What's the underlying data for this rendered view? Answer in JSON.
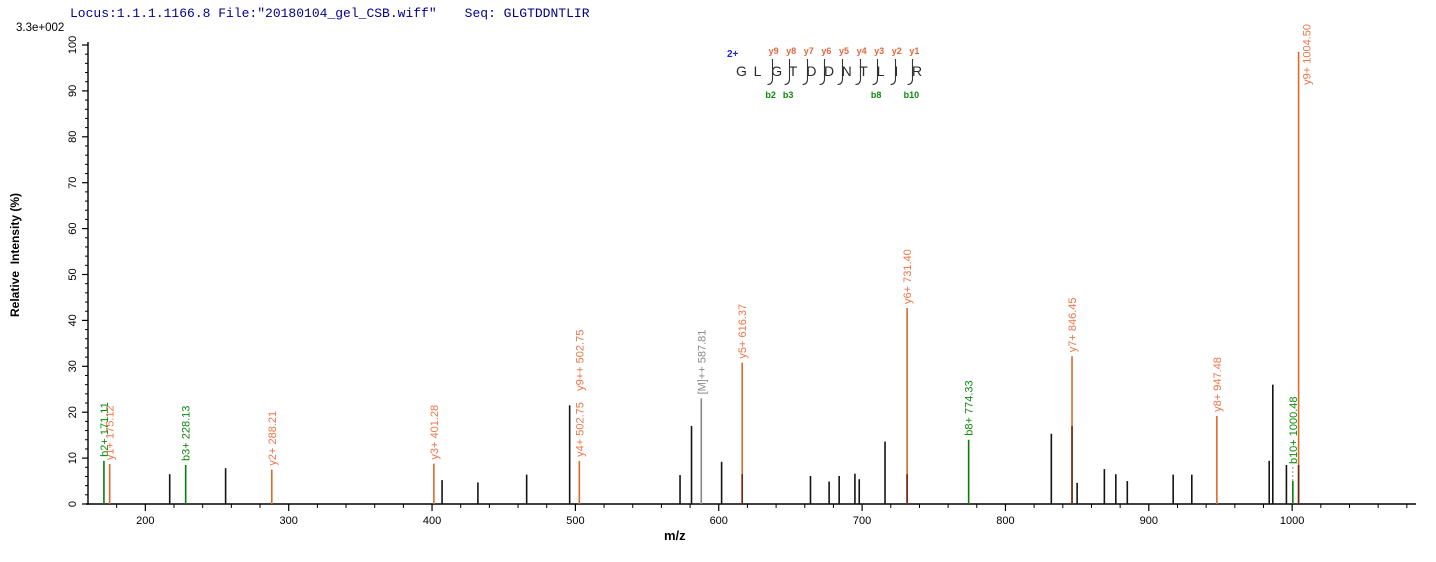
{
  "header": {
    "locus_file": "Locus:1.1.1.1166.8 File:\"20180104_gel_CSB.wiff\"",
    "seq": "Seq: GLGTDDNTLIR",
    "max_intensity": "3.3e+002",
    "text_color": "#00008b"
  },
  "axes": {
    "x_label": "m/z",
    "y_label": "Relative  Intensity (%)",
    "x_ticks": [
      200,
      300,
      400,
      500,
      600,
      700,
      800,
      900,
      1000
    ],
    "x_minor_step": 20,
    "x_range": [
      160,
      1085
    ],
    "y_ticks": [
      0,
      10,
      20,
      30,
      40,
      50,
      60,
      70,
      80,
      90,
      100
    ],
    "y_minor_step": 2,
    "y_range": [
      0,
      100
    ]
  },
  "peptide": {
    "charge_label": "2+",
    "sequence": "GLGTDDNTLIR",
    "residues": [
      "G",
      "L",
      "G",
      "T",
      "D",
      "D",
      "N",
      "T",
      "L",
      "I",
      "R"
    ],
    "separators": [
      {
        "after_residue": 2,
        "y_ion": "y9",
        "b_ion": "b2"
      },
      {
        "after_residue": 3,
        "y_ion": "y8",
        "b_ion": "b3"
      },
      {
        "after_residue": 4,
        "y_ion": "y7",
        "b_ion": null
      },
      {
        "after_residue": 5,
        "y_ion": "y6",
        "b_ion": null
      },
      {
        "after_residue": 6,
        "y_ion": "y5",
        "b_ion": null
      },
      {
        "after_residue": 7,
        "y_ion": "y4",
        "b_ion": null
      },
      {
        "after_residue": 8,
        "y_ion": "y3",
        "b_ion": "b8"
      },
      {
        "after_residue": 9,
        "y_ion": "y2",
        "b_ion": null
      },
      {
        "after_residue": 10,
        "y_ion": "y1",
        "b_ion": "b10"
      }
    ]
  },
  "colors": {
    "y_ion_line": "#d96b28",
    "y_ion_label": "#ed7547",
    "b_ion_line": "#0a7c0a",
    "b_ion_label": "#0b8a0b",
    "precursor": "#8a8a8a",
    "unassigned": "#141414",
    "overlap": "#6e2413",
    "axis": "#000000",
    "charge_blue": "#2626d8"
  },
  "chart_data": {
    "type": "bar",
    "title": "Locus:1.1.1.1166.8 File:\"20180104_gel_CSB.wiff\" Seq: GLGTDDNTLIR",
    "xlabel": "m/z",
    "ylabel": "Relative  Intensity (%)",
    "xlim": [
      160,
      1085
    ],
    "ylim": [
      0,
      100
    ],
    "base_peak_intensity_label": "3.3e+002",
    "grid": false,
    "peaks": [
      {
        "mz": 171.11,
        "intensity_pct": 9.4,
        "type": "b",
        "label": "b2+ 171.11"
      },
      {
        "mz": 175.12,
        "intensity_pct": 8.7,
        "type": "y",
        "label": "y1+ 175.12"
      },
      {
        "mz": 217,
        "intensity_pct": 6.5,
        "type": "unassigned",
        "label": null
      },
      {
        "mz": 228.13,
        "intensity_pct": 8.5,
        "type": "b",
        "label": "b3+ 228.13"
      },
      {
        "mz": 256,
        "intensity_pct": 7.8,
        "type": "unassigned",
        "label": null
      },
      {
        "mz": 288.21,
        "intensity_pct": 7.5,
        "type": "y",
        "label": "y2+ 288.21"
      },
      {
        "mz": 401.28,
        "intensity_pct": 8.8,
        "type": "y",
        "label": "y3+ 401.28"
      },
      {
        "mz": 407,
        "intensity_pct": 5.2,
        "type": "unassigned",
        "label": null
      },
      {
        "mz": 432,
        "intensity_pct": 4.7,
        "type": "unassigned",
        "label": null
      },
      {
        "mz": 466,
        "intensity_pct": 6.4,
        "type": "unassigned",
        "label": null
      },
      {
        "mz": 496,
        "intensity_pct": 21.5,
        "type": "unassigned",
        "label": null
      },
      {
        "mz": 502.75,
        "intensity_pct": 9.4,
        "type": "y",
        "label": "y4+ 502.75",
        "label2": "y9++ 502.75"
      },
      {
        "mz": 573,
        "intensity_pct": 6.3,
        "type": "unassigned",
        "label": null
      },
      {
        "mz": 581,
        "intensity_pct": 17.0,
        "type": "unassigned",
        "label": null
      },
      {
        "mz": 587.81,
        "intensity_pct": 23.0,
        "type": "precursor",
        "label": "[M]++ 587.81"
      },
      {
        "mz": 602,
        "intensity_pct": 9.2,
        "type": "unassigned",
        "label": null
      },
      {
        "mz": 616.37,
        "intensity_pct": 30.8,
        "type": "y",
        "label": "y5+ 616.37",
        "overlap_pct": 6.5
      },
      {
        "mz": 664,
        "intensity_pct": 6.1,
        "type": "unassigned",
        "label": null
      },
      {
        "mz": 677,
        "intensity_pct": 4.9,
        "type": "unassigned",
        "label": null
      },
      {
        "mz": 684,
        "intensity_pct": 6.1,
        "type": "unassigned",
        "label": null
      },
      {
        "mz": 695,
        "intensity_pct": 6.6,
        "type": "unassigned",
        "label": null
      },
      {
        "mz": 698,
        "intensity_pct": 5.4,
        "type": "unassigned",
        "label": null
      },
      {
        "mz": 716,
        "intensity_pct": 13.6,
        "type": "unassigned",
        "label": null
      },
      {
        "mz": 731.4,
        "intensity_pct": 42.7,
        "type": "y",
        "label": "y6+ 731.40",
        "overlap_pct": 6.5
      },
      {
        "mz": 774.33,
        "intensity_pct": 14.0,
        "type": "b",
        "label": "b8+ 774.33"
      },
      {
        "mz": 832,
        "intensity_pct": 15.3,
        "type": "unassigned",
        "label": null
      },
      {
        "mz": 846.45,
        "intensity_pct": 32.2,
        "type": "y",
        "label": "y7+ 846.45",
        "overlap_pct": 17.0
      },
      {
        "mz": 850,
        "intensity_pct": 4.6,
        "type": "unassigned",
        "label": null
      },
      {
        "mz": 869,
        "intensity_pct": 7.6,
        "type": "unassigned",
        "label": null
      },
      {
        "mz": 877,
        "intensity_pct": 6.5,
        "type": "unassigned",
        "label": null
      },
      {
        "mz": 885,
        "intensity_pct": 5.0,
        "type": "unassigned",
        "label": null
      },
      {
        "mz": 917,
        "intensity_pct": 6.4,
        "type": "unassigned",
        "label": null
      },
      {
        "mz": 930,
        "intensity_pct": 6.4,
        "type": "unassigned",
        "label": null
      },
      {
        "mz": 947.48,
        "intensity_pct": 19.2,
        "type": "y",
        "label": "y8+ 947.48"
      },
      {
        "mz": 984,
        "intensity_pct": 9.4,
        "type": "unassigned",
        "label": null
      },
      {
        "mz": 986.5,
        "intensity_pct": 26.0,
        "type": "unassigned",
        "label": null
      },
      {
        "mz": 996,
        "intensity_pct": 8.5,
        "type": "unassigned",
        "label": null
      },
      {
        "mz": 1000.48,
        "intensity_pct": 5.0,
        "type": "b",
        "label": "b10+ 1000.48",
        "leader": true
      },
      {
        "mz": 1004.5,
        "intensity_pct": 98.5,
        "type": "y",
        "label": "y9+ 1004.50",
        "overlap_pct": 8.5,
        "label_offset_y": 33
      }
    ]
  }
}
